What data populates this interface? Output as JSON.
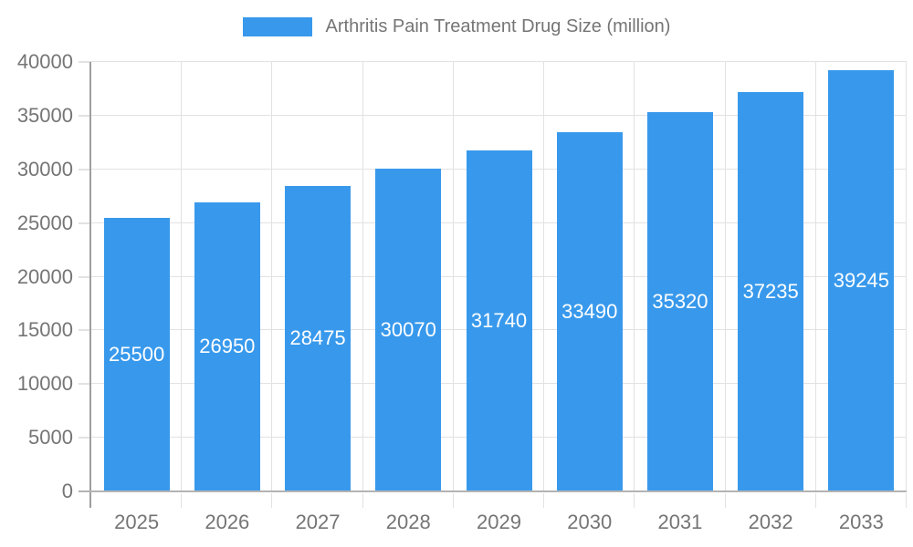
{
  "legend": {
    "label": "Arthritis Pain Treatment Drug Size (million)"
  },
  "colors": {
    "bar": "#3899EC",
    "bar_label": "#ffffff",
    "axis_text": "#757575",
    "grid": "#e2e2e2",
    "axis_line": "#9e9e9e",
    "baseline": "#b3b3b3",
    "background": "#ffffff"
  },
  "chart_data": {
    "type": "bar",
    "title": "Arthritis Pain Treatment Drug Size (million)",
    "categories": [
      "2025",
      "2026",
      "2027",
      "2028",
      "2029",
      "2030",
      "2031",
      "2032",
      "2033"
    ],
    "values": [
      25500,
      26950,
      28475,
      30070,
      31740,
      33490,
      35320,
      37235,
      39245
    ],
    "series": [
      {
        "name": "Arthritis Pain Treatment Drug Size (million)",
        "color": "#3899EC",
        "values": [
          25500,
          26950,
          28475,
          30070,
          31740,
          33490,
          35320,
          37235,
          39245
        ]
      }
    ],
    "xlabel": "",
    "ylabel": "",
    "ylim": [
      0,
      40000
    ],
    "yticks": [
      0,
      5000,
      10000,
      15000,
      20000,
      25000,
      30000,
      35000,
      40000
    ],
    "grid": true,
    "legend_position": "top",
    "bar_value_labels": "inside-center, white"
  }
}
